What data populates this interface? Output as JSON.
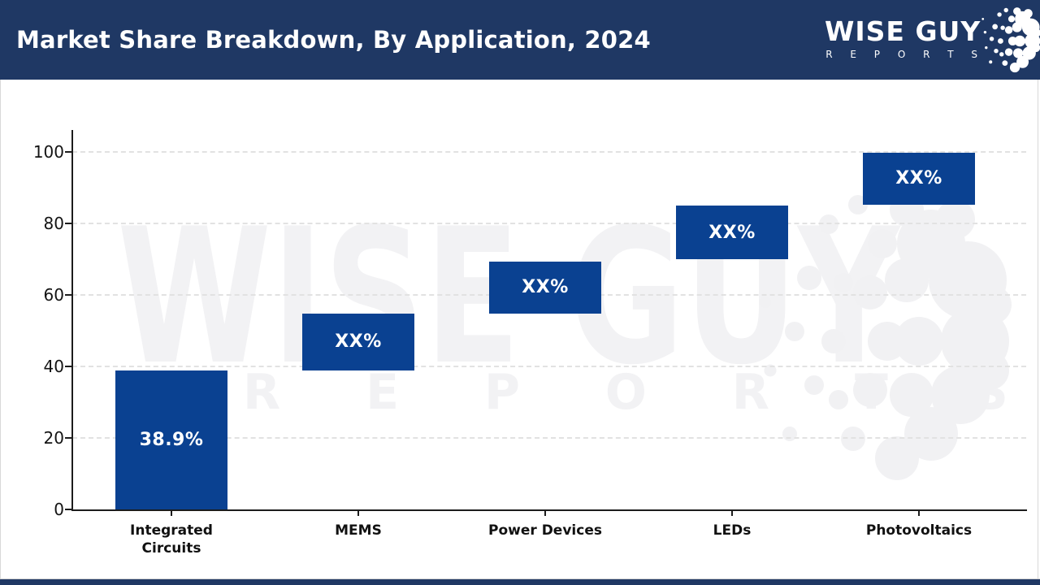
{
  "header": {
    "title": "Market Share Breakdown, By Application, 2024",
    "logo": {
      "name": "WISE GUY",
      "subtitle": "R E P O R T S"
    }
  },
  "watermark": {
    "line1": "WISE GUY",
    "line2": "R E P O R T S"
  },
  "chart_data": {
    "type": "bar",
    "subtype": "waterfall",
    "title": "Market Share Breakdown, By Application, 2024",
    "categories": [
      "Integrated Circuits",
      "MEMS",
      "Power Devices",
      "LEDs",
      "Photovoltaics"
    ],
    "segments": [
      {
        "category": "Integrated Circuits",
        "lines": [
          "Integrated",
          "Circuits"
        ],
        "start": 0,
        "end": 38.9,
        "label": "38.9%"
      },
      {
        "category": "MEMS",
        "lines": [
          "MEMS"
        ],
        "start": 38.9,
        "end": 54.8,
        "label": "XX%"
      },
      {
        "category": "Power Devices",
        "lines": [
          "Power Devices"
        ],
        "start": 54.8,
        "end": 69.4,
        "label": "XX%"
      },
      {
        "category": "LEDs",
        "lines": [
          "LEDs"
        ],
        "start": 69.9,
        "end": 84.9,
        "label": "XX%"
      },
      {
        "category": "Photovoltaics",
        "lines": [
          "Photovoltaics"
        ],
        "start": 85.2,
        "end": 99.8,
        "label": "XX%"
      }
    ],
    "xlabel": "",
    "ylabel": "",
    "ylim": [
      0,
      106.5
    ],
    "yticks": [
      0,
      20,
      40,
      60,
      80,
      100
    ],
    "grid": true,
    "legend": false,
    "bar_color": "#0a4191",
    "label_color": "#ffffff"
  },
  "colors": {
    "header_bg": "#1f3864",
    "footer_bg": "#1f3864",
    "bar": "#0a4191",
    "watermark": "#f2f2f4",
    "grid": "#e2e2e2",
    "axis": "#1c1c1c",
    "frame": "#d8d8d8"
  }
}
